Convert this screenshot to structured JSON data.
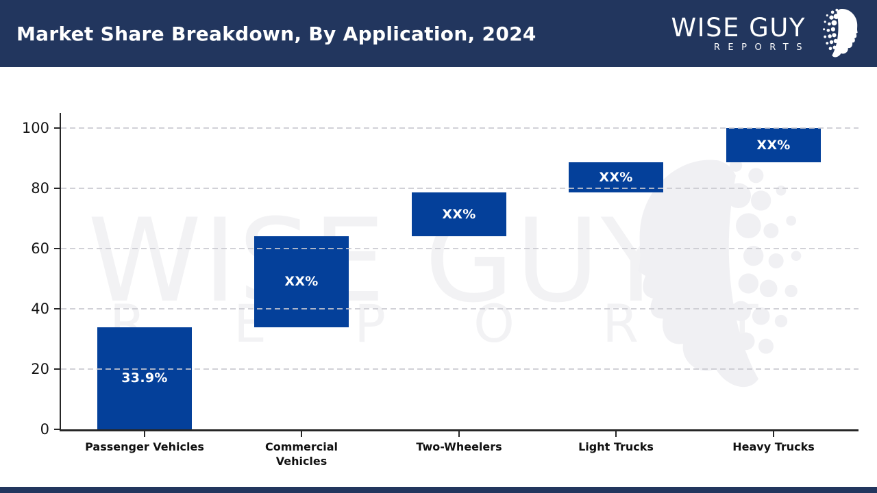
{
  "header": {
    "title": "Market Share Breakdown, By Application, 2024",
    "logo": {
      "line1": "WISE GUY",
      "line2": "REPORTS"
    }
  },
  "watermark": {
    "line1": "WISE GUY",
    "line2": "R E P O R T S"
  },
  "chart_data": {
    "type": "bar",
    "subtype": "floating-waterfall",
    "title": "Market Share Breakdown, By Application, 2024",
    "xlabel": "",
    "ylabel": "",
    "ylim": [
      0,
      100
    ],
    "yticks": [
      0,
      20,
      40,
      60,
      80,
      100
    ],
    "grid": "horizontal-dashed",
    "legend": "none",
    "bar_color": "#04409a",
    "bar_label_color": "#ffffff",
    "categories": [
      "Passenger Vehicles",
      "Commercial\nVehicles",
      "Two-Wheelers",
      "Light Trucks",
      "Heavy Trucks"
    ],
    "segments": [
      {
        "category": "Passenger Vehicles",
        "start": 0,
        "end": 33.9,
        "value": 33.9,
        "label": "33.9%"
      },
      {
        "category": "Commercial Vehicles",
        "start": 33.9,
        "end": 64.1,
        "value": 30.2,
        "label": "XX%"
      },
      {
        "category": "Two-Wheelers",
        "start": 64.1,
        "end": 78.6,
        "value": 14.5,
        "label": "XX%"
      },
      {
        "category": "Light Trucks",
        "start": 78.6,
        "end": 88.6,
        "value": 10.0,
        "label": "XX%"
      },
      {
        "category": "Heavy Trucks",
        "start": 88.6,
        "end": 100,
        "value": 11.4,
        "label": "XX%"
      }
    ]
  },
  "colors": {
    "header_bg": "#22365e",
    "footer_bg": "#22365e",
    "bar": "#04409a",
    "axis": "#262626",
    "gridline": "#c9c9d0",
    "watermark": "#f2f2f4"
  }
}
